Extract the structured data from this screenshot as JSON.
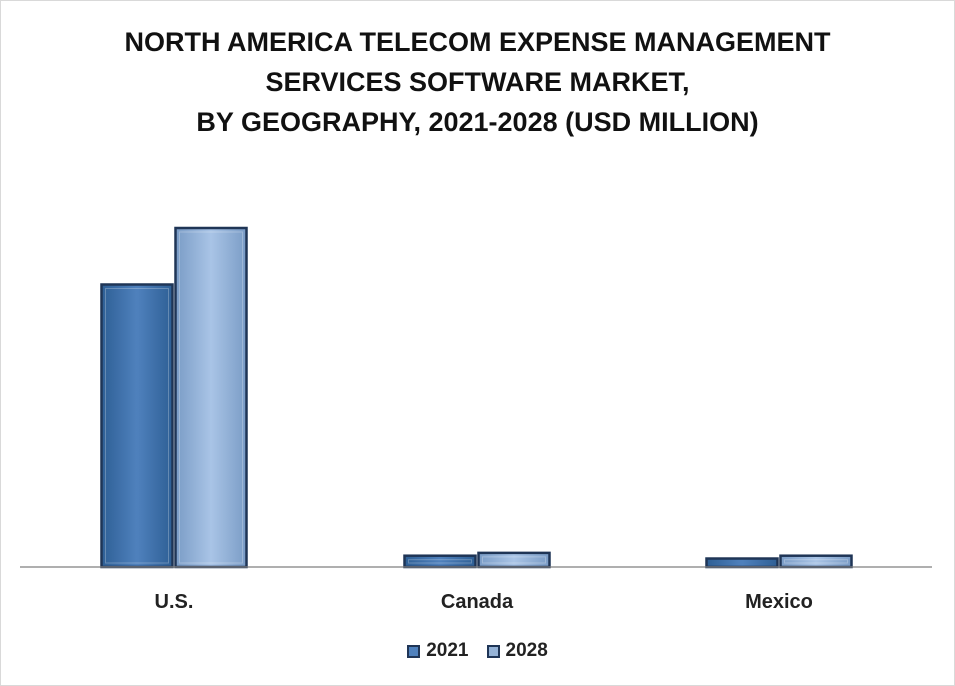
{
  "title_lines": [
    "NORTH AMERICA TELECOM EXPENSE MANAGEMENT",
    "SERVICES SOFTWARE MARKET,",
    "BY GEOGRAPHY, 2021-2028 (USD MILLION)"
  ],
  "colors": {
    "s2021": "#4f81bd",
    "s2028": "#95b3d7",
    "edge": "#1f3556",
    "axis": "#7f7f7f"
  },
  "chart_data": {
    "type": "bar",
    "title": "NORTH AMERICA TELECOM EXPENSE MANAGEMENT SERVICES SOFTWARE MARKET, BY GEOGRAPHY, 2021-2028 (USD MILLION)",
    "categories": [
      "U.S.",
      "Canada",
      "Mexico"
    ],
    "series": [
      {
        "name": "2021",
        "values": [
          100,
          4,
          3
        ]
      },
      {
        "name": "2028",
        "values": [
          120,
          5,
          4
        ]
      }
    ],
    "ylim": [
      0,
      120
    ],
    "grid": false,
    "legend": "bottom"
  }
}
